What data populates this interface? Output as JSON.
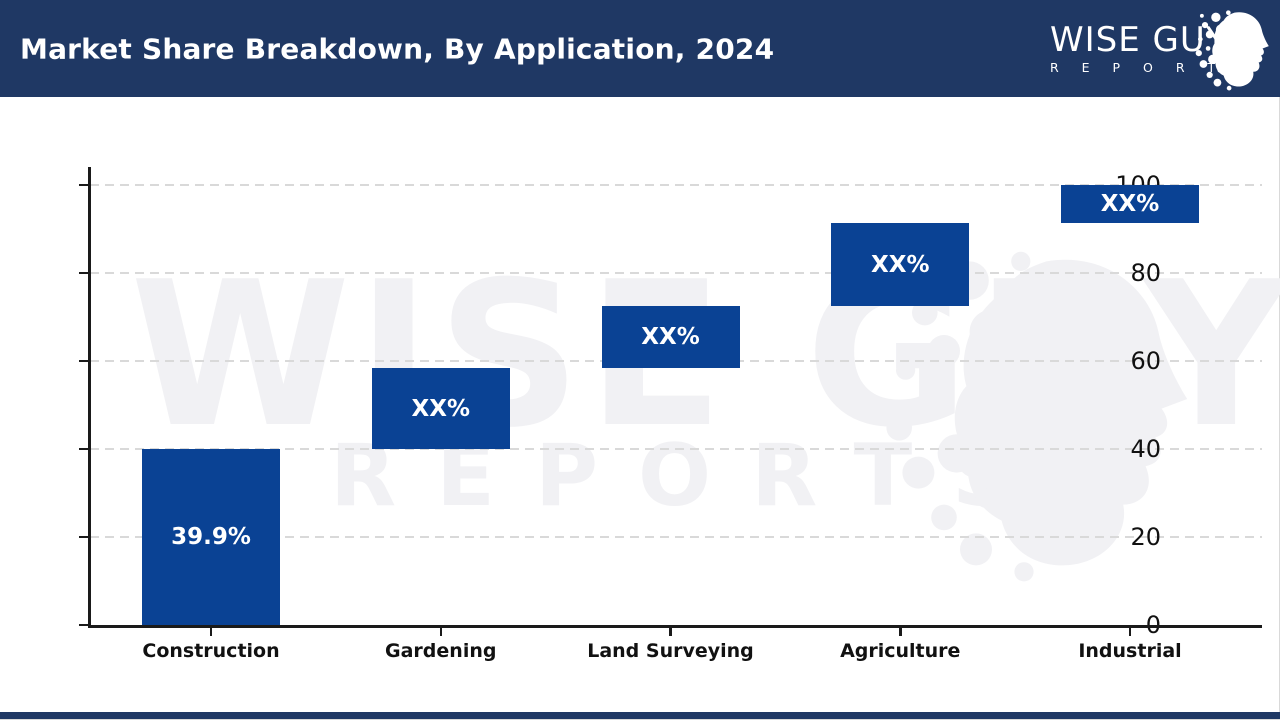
{
  "header": {
    "title": "Market Share Breakdown, By Application, 2024",
    "logo": {
      "line1": "WISE GUY",
      "line2": "R E P O R T S",
      "icon": "dotted-head-icon"
    }
  },
  "watermark": {
    "line1": "WISE GUY",
    "line2": "REPORTS",
    "icon": "dotted-head-watermark"
  },
  "chart_data": {
    "type": "bar",
    "subtype": "floating-waterfall",
    "title": "Market Share Breakdown, By Application, 2024",
    "xlabel": "",
    "ylabel": "",
    "ylim": [
      0,
      104
    ],
    "yticks": [
      0,
      20,
      40,
      60,
      80,
      100
    ],
    "grid": "horizontal-dashed",
    "legend": "none",
    "categories": [
      "Construction",
      "Gardening",
      "Land Surveying",
      "Agriculture",
      "Industrial"
    ],
    "segments": [
      {
        "category": "Construction",
        "start": 0,
        "end": 39.9,
        "value": 39.9,
        "label": "39.9%"
      },
      {
        "category": "Gardening",
        "start": 39.9,
        "end": 58.5,
        "value": 18.6,
        "label": "XX%"
      },
      {
        "category": "Land Surveying",
        "start": 58.5,
        "end": 72.4,
        "value": 13.9,
        "label": "XX%"
      },
      {
        "category": "Agriculture",
        "start": 72.4,
        "end": 91.4,
        "value": 19.0,
        "label": "XX%"
      },
      {
        "category": "Industrial",
        "start": 91.4,
        "end": 100,
        "value": 8.6,
        "label": "XX%"
      }
    ],
    "bar_color": "#0a4294",
    "bar_label_color": "#ffffff"
  },
  "colors": {
    "header_bg": "#1f3864",
    "footer_bg": "#1f3864",
    "bar": "#0a4294",
    "grid": "#d9d9d9",
    "watermark": "#f1f1f4",
    "axis": "#1a1a1a"
  }
}
